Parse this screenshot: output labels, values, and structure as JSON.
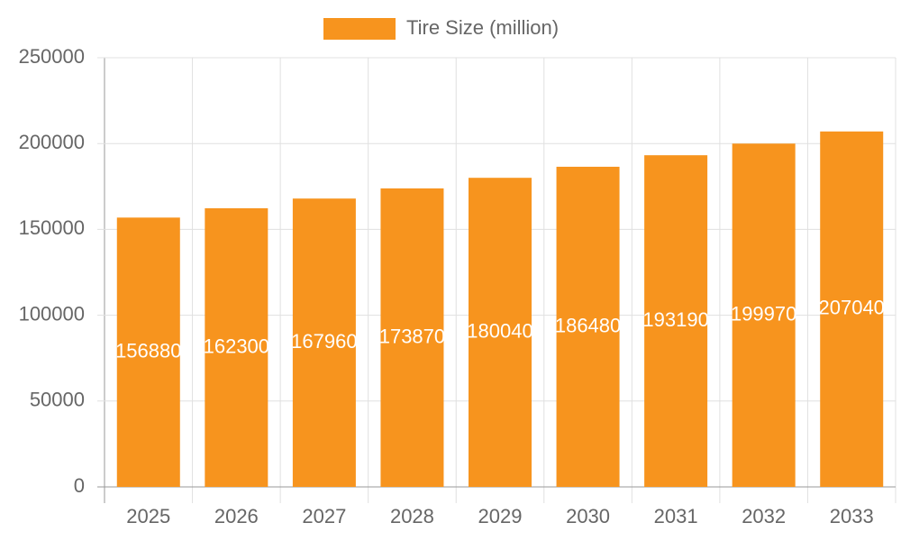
{
  "chart_data": {
    "type": "bar",
    "categories": [
      "2025",
      "2026",
      "2027",
      "2028",
      "2029",
      "2030",
      "2031",
      "2032",
      "2033"
    ],
    "series": [
      {
        "name": "Tire Size (million)",
        "color": "#f7941e",
        "values": [
          156880,
          162300,
          167960,
          173870,
          180040,
          186480,
          193190,
          199970,
          207040
        ]
      }
    ],
    "ylim": [
      0,
      250000
    ],
    "yticks": [
      0,
      50000,
      100000,
      150000,
      200000,
      250000
    ],
    "grid": true,
    "legend": "top",
    "data_labels": true
  }
}
